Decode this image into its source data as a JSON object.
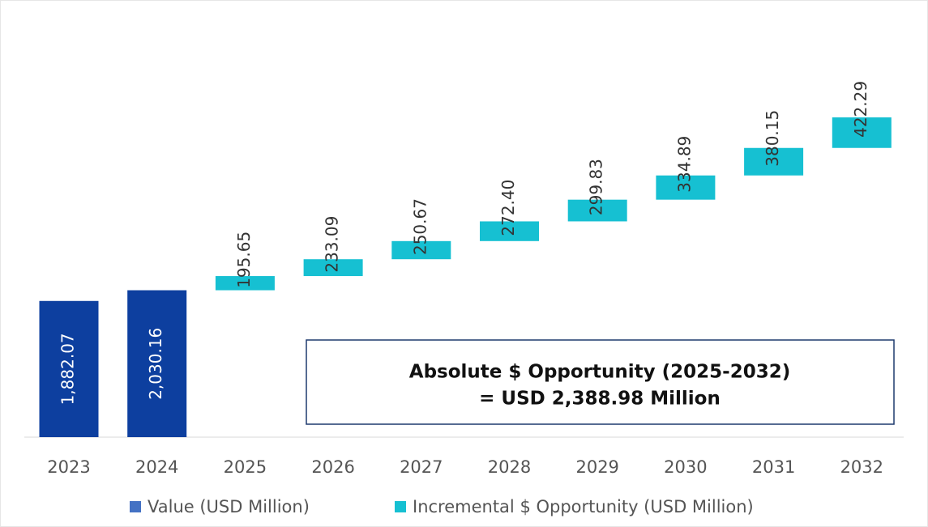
{
  "chart_data": {
    "type": "waterfall",
    "categories": [
      "2023",
      "2024",
      "2025",
      "2026",
      "2027",
      "2028",
      "2029",
      "2030",
      "2031",
      "2032"
    ],
    "series": [
      {
        "name": "Value (USD Million)",
        "color": "#0d3f9f",
        "values": [
          1882.07,
          2030.16,
          null,
          null,
          null,
          null,
          null,
          null,
          null,
          null
        ],
        "value_labels": [
          "1,882.07",
          "2,030.16",
          null,
          null,
          null,
          null,
          null,
          null,
          null,
          null
        ]
      },
      {
        "name": "Incremental $ Opportunity (USD Million)",
        "color": "#16c0d2",
        "values": [
          null,
          null,
          195.65,
          233.09,
          250.67,
          272.4,
          299.83,
          334.89,
          380.15,
          422.29
        ],
        "value_labels": [
          null,
          null,
          "195.65",
          "233.09",
          "250.67",
          "272.40",
          "299.83",
          "334.89",
          "380.15",
          "422.29"
        ]
      }
    ],
    "annotation": [
      "Absolute $ Opportunity (2025-2032)",
      "= USD 2,388.98  Million"
    ]
  }
}
